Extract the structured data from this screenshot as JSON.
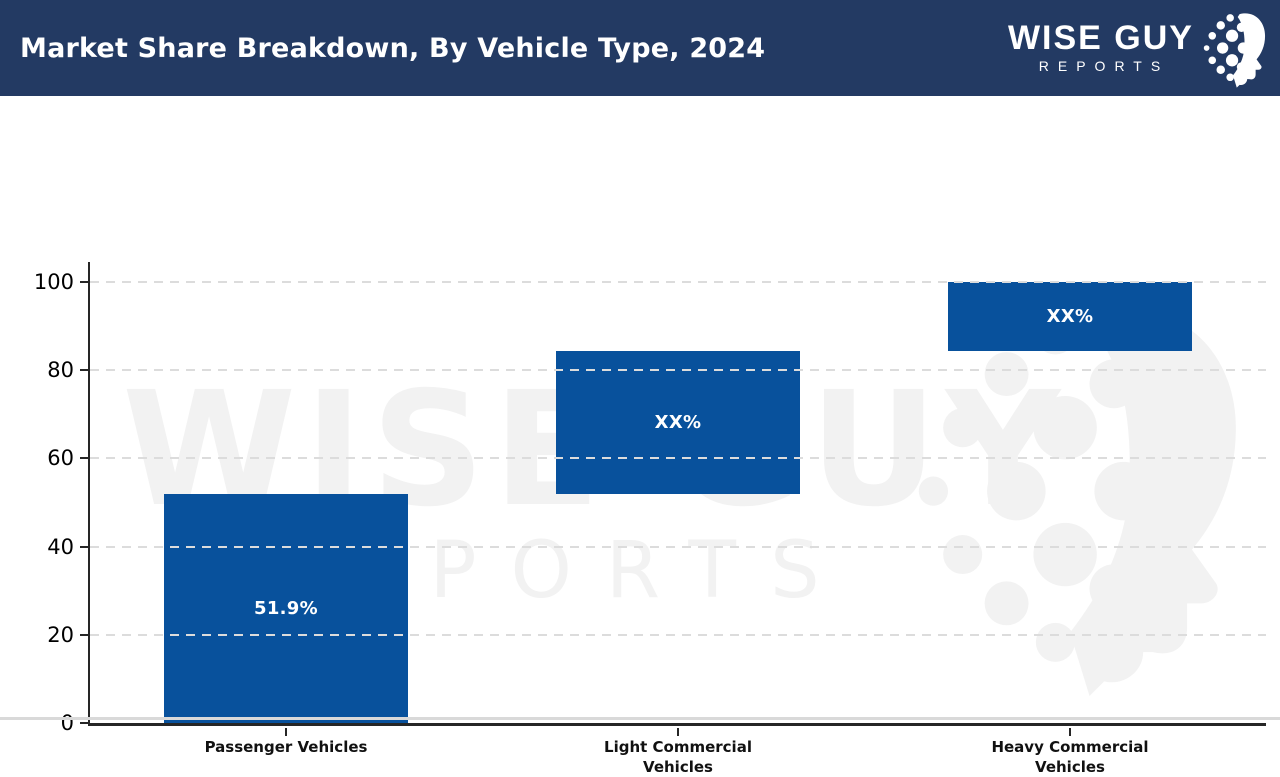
{
  "header": {
    "title": "Market Share Breakdown, By Vehicle Type, 2024",
    "logo": {
      "line1": "WISE GUY",
      "line2": "REPORTS"
    }
  },
  "colors": {
    "header_bg": "#233a63",
    "bar": "#08519c",
    "bar_label": "#ffffff",
    "grid": "#dcdcdc",
    "axis": "#262626",
    "watermark": "#f2f2f2",
    "bottom_border": "#d9d9d9"
  },
  "watermark": {
    "line1": "WISE GUY",
    "line2": "REPORTS"
  },
  "chart_data": {
    "type": "bar",
    "subtype": "waterfall-cumulative",
    "title": "Market Share Breakdown, By Vehicle Type, 2024",
    "categories": [
      "Passenger Vehicles",
      "Light Commercial Vehicles",
      "Heavy Commercial Vehicles"
    ],
    "bars": [
      {
        "category": "Passenger Vehicles",
        "label": "51.9%",
        "start": 0,
        "end": 51.9
      },
      {
        "category": "Light Commercial Vehicles",
        "label": "XX%",
        "start": 51.9,
        "end": 84.3
      },
      {
        "category": "Heavy Commercial Vehicles",
        "label": "XX%",
        "start": 84.3,
        "end": 100
      }
    ],
    "xlabel": "",
    "ylabel": "",
    "ylim": [
      0,
      100
    ],
    "yticks": [
      0,
      20,
      40,
      60,
      80,
      100
    ],
    "grid": "horizontal-dashed",
    "legend": "none"
  }
}
